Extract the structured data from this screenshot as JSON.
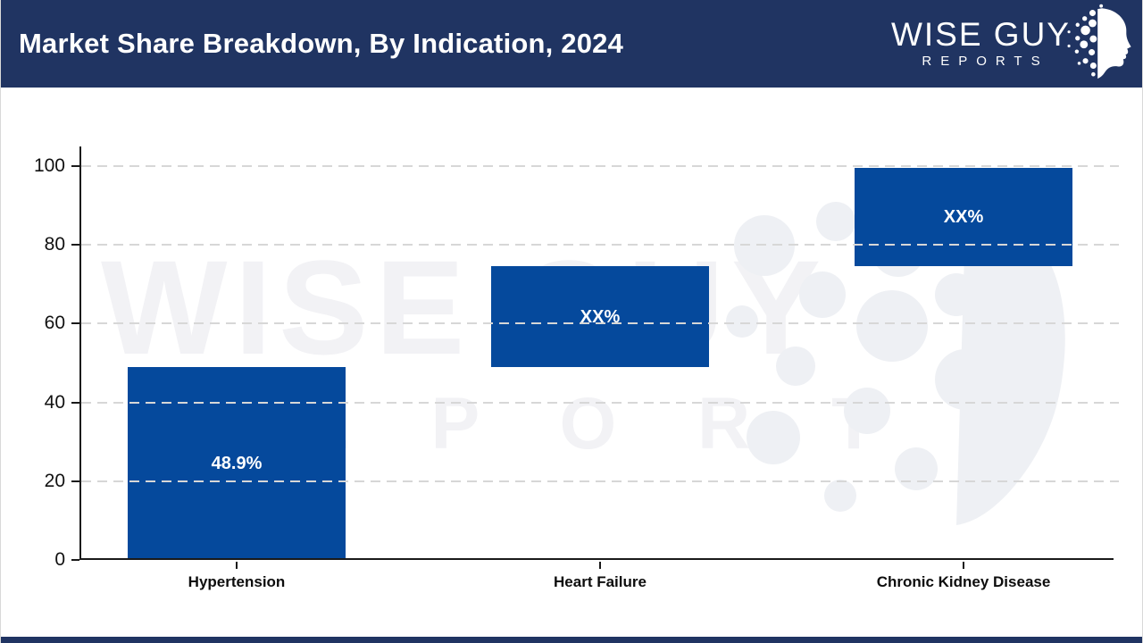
{
  "header": {
    "title": "Market Share Breakdown, By Indication, 2024",
    "bg_color": "#203462",
    "logo": {
      "line1": "WISE GUY",
      "line2": "REPORTS"
    }
  },
  "watermark": {
    "line1": "WISE GUY",
    "line2": "R E P O R T S"
  },
  "colors": {
    "header_bg": "#203462",
    "bar_blue": "#05499c",
    "gridline": "#d7d7d7",
    "axis": "#1a1a1a",
    "bar_label_text": "#ffffff",
    "watermark": "#f2f2f5"
  },
  "chart_data": {
    "type": "bar",
    "subtype": "floating-waterfall",
    "title": "Market Share Breakdown, By Indication, 2024",
    "categories": [
      "Hypertension",
      "Heart Failure",
      "Chronic Kidney Disease"
    ],
    "segments": [
      {
        "category": "Hypertension",
        "start": 0,
        "end": 48.9,
        "label": "48.9%"
      },
      {
        "category": "Heart Failure",
        "start": 48.9,
        "end": 74.6,
        "label": "XX%"
      },
      {
        "category": "Chronic Kidney Disease",
        "start": 74.6,
        "end": 99.5,
        "label": "XX%"
      }
    ],
    "xlabel": "",
    "ylabel": "",
    "yticks": [
      0,
      20,
      40,
      60,
      80,
      100
    ],
    "ylim": [
      0,
      105
    ],
    "bar_color": "#05499c",
    "grid": {
      "horizontal": true,
      "style": "dashed",
      "color": "#d7d7d7",
      "drawn_over_bars": true
    },
    "legend": null
  }
}
